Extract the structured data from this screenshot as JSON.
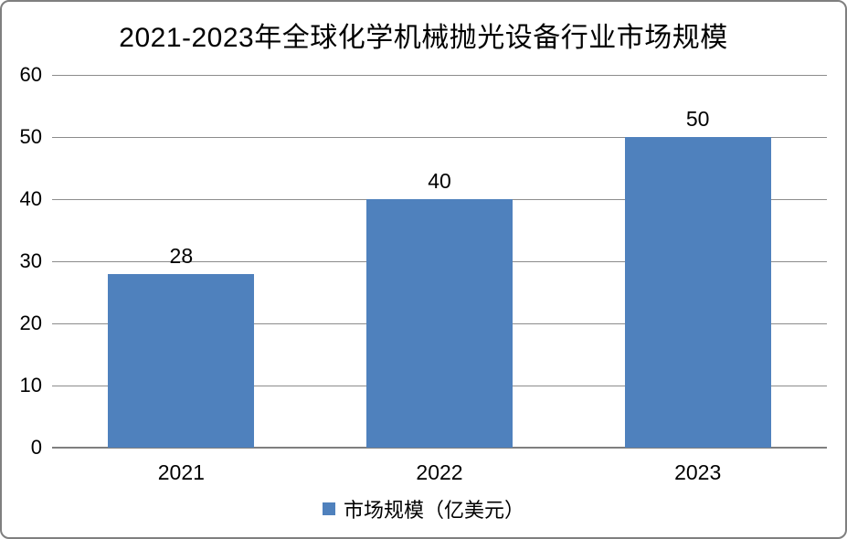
{
  "chart_data": {
    "type": "bar",
    "title": "2021-2023年全球化学机械抛光设备行业市场规模",
    "categories": [
      "2021",
      "2022",
      "2023"
    ],
    "series": [
      {
        "name": "市场规模（亿美元）",
        "values": [
          28,
          40,
          50
        ]
      }
    ],
    "xlabel": "",
    "ylabel": "",
    "ylim": [
      0,
      60
    ],
    "yticks": [
      0,
      10,
      20,
      30,
      40,
      50,
      60
    ],
    "grid": true,
    "legend_position": "bottom",
    "colors": {
      "bar": "#4f81bd",
      "gridline": "#8c8c8c",
      "baseline": "#7f7f7f",
      "border": "#7f7f7f",
      "text": "#000000",
      "background": "#ffffff"
    }
  }
}
